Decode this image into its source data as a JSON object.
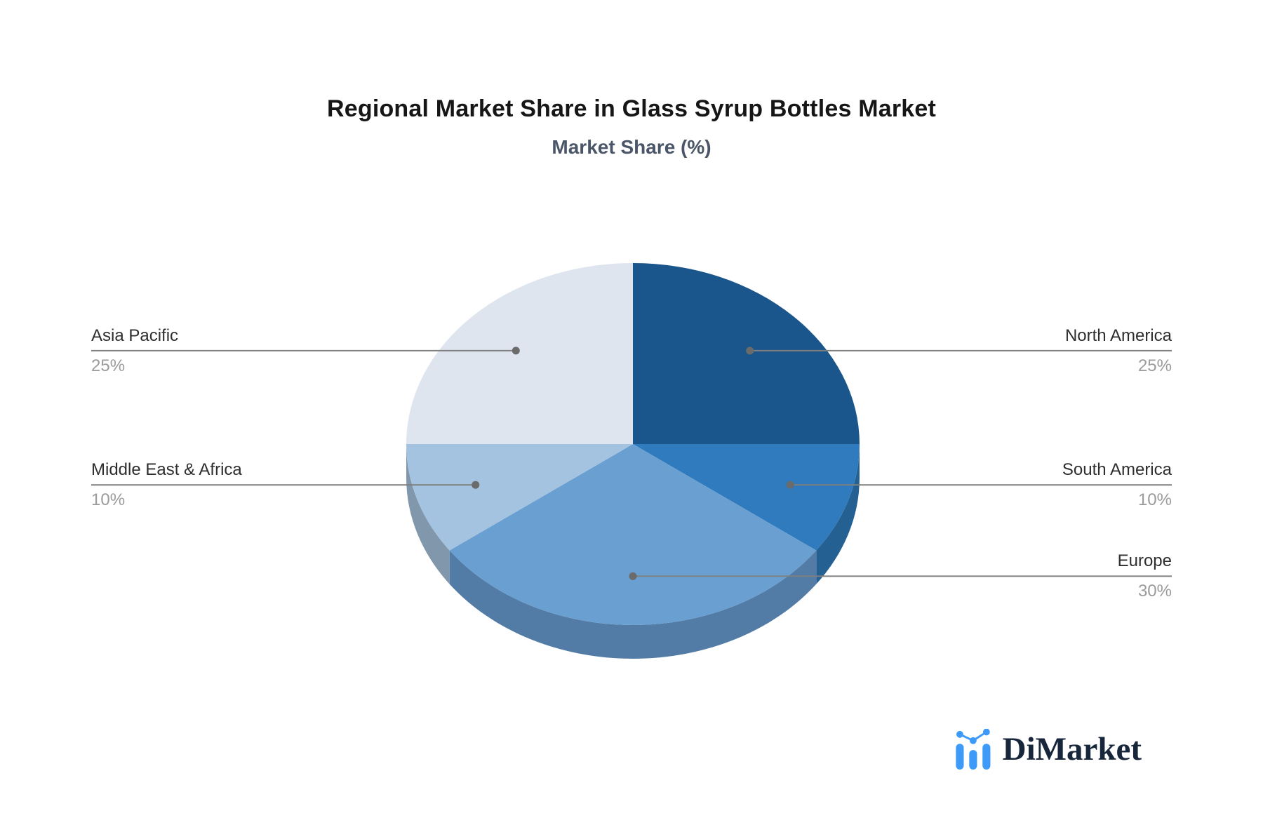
{
  "page": {
    "background": "#FFFFFF"
  },
  "chart_data": {
    "type": "pie",
    "style": "3d-pie",
    "title": "Regional Market Share in Glass Syrup Bottles Market",
    "subtitle": "Market Share (%)",
    "unit": "%",
    "start_angle_deg": 0,
    "direction": "clockwise",
    "legend": "none",
    "grid": "off",
    "categories": [
      "North America",
      "South America",
      "Europe",
      "Middle East & Africa",
      "Asia Pacific"
    ],
    "values": [
      25,
      10,
      30,
      10,
      25
    ],
    "slices": [
      {
        "label": "North America",
        "value": 25,
        "display": "25%",
        "color": "#1A568C",
        "side_color": "#14436E",
        "label_side": "right"
      },
      {
        "label": "South America",
        "value": 10,
        "display": "10%",
        "color": "#2F7BBD",
        "side_color": "#256093",
        "label_side": "right"
      },
      {
        "label": "Europe",
        "value": 30,
        "display": "30%",
        "color": "#699FD1",
        "side_color": "#527CA6",
        "label_side": "right"
      },
      {
        "label": "Middle East & Africa",
        "value": 10,
        "display": "10%",
        "color": "#A4C3E0",
        "side_color": "#8097AC",
        "label_side": "left"
      },
      {
        "label": "Asia Pacific",
        "value": 25,
        "display": "25%",
        "color": "#DEE5EF",
        "side_color": "#B3BECD",
        "label_side": "left"
      }
    ]
  },
  "connectors": {
    "line_color": "#7F7F7F",
    "dot_color": "#6B6B6B"
  },
  "label_style": {
    "name_color": "#2E2E2E",
    "value_color": "#9B9B9B"
  },
  "branding": {
    "name": "DiMarket",
    "icon": "bar-chart-trend-icon",
    "text_color": "#17263B",
    "icon_color": "#3D9AF8"
  }
}
